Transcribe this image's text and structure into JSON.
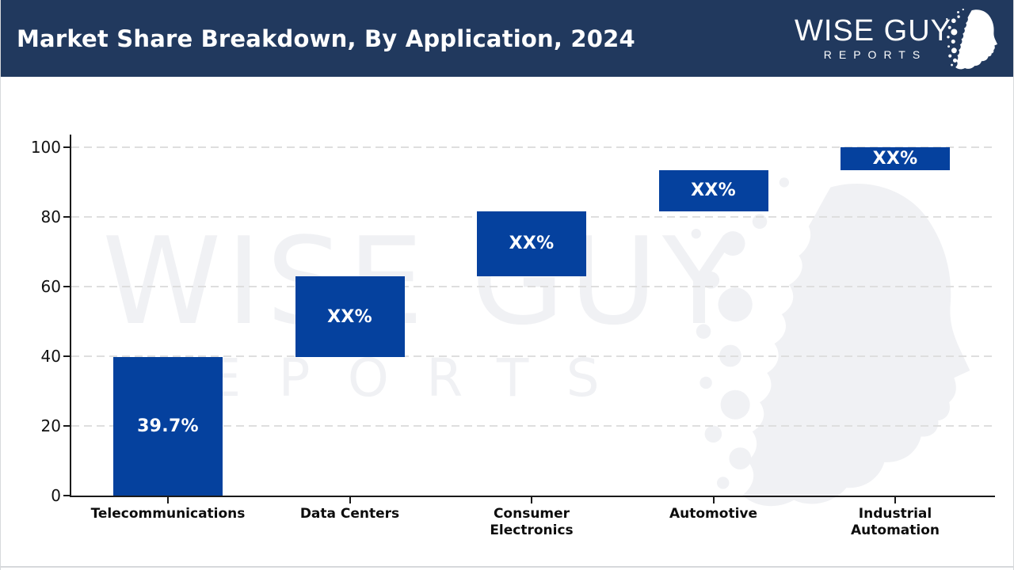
{
  "header": {
    "title": "Market Share Breakdown, By Application, 2024",
    "bg_color": "#21395e",
    "logo": {
      "line1": "WISE GUY",
      "line2": "REPORTS"
    }
  },
  "watermark": {
    "line1": "WISE GUY",
    "line2": "REPORTS"
  },
  "chart_data": {
    "type": "bar",
    "subtype": "waterfall",
    "title": "Market Share Breakdown, By Application, 2024",
    "categories": [
      "Telecommunications",
      "Data Centers",
      "Consumer Electronics",
      "Automotive",
      "Industrial Automation"
    ],
    "category_label_lines": [
      [
        "Telecommunications"
      ],
      [
        "Data Centers"
      ],
      [
        "Consumer",
        "Electronics"
      ],
      [
        "Automotive"
      ],
      [
        "Industrial",
        "Automation"
      ]
    ],
    "segments": [
      {
        "category": "Telecommunications",
        "start": 0,
        "end": 39.7,
        "label": "39.7%"
      },
      {
        "category": "Data Centers",
        "start": 39.7,
        "end": 63.0,
        "label": "XX%"
      },
      {
        "category": "Consumer Electronics",
        "start": 63.0,
        "end": 81.6,
        "label": "XX%"
      },
      {
        "category": "Automotive",
        "start": 81.6,
        "end": 93.5,
        "label": "XX%"
      },
      {
        "category": "Industrial Automation",
        "start": 93.5,
        "end": 100.0,
        "label": "XX%"
      }
    ],
    "yticks": [
      0,
      20,
      40,
      60,
      80,
      100
    ],
    "ylim": [
      0,
      104
    ],
    "grid": {
      "axis": "y",
      "style": "dashed",
      "color": "#dedede"
    },
    "bar_color": "#05419e",
    "bar_label_color": "#ffffff",
    "axis_color": "#1a1a1a",
    "legend_position": "none"
  }
}
